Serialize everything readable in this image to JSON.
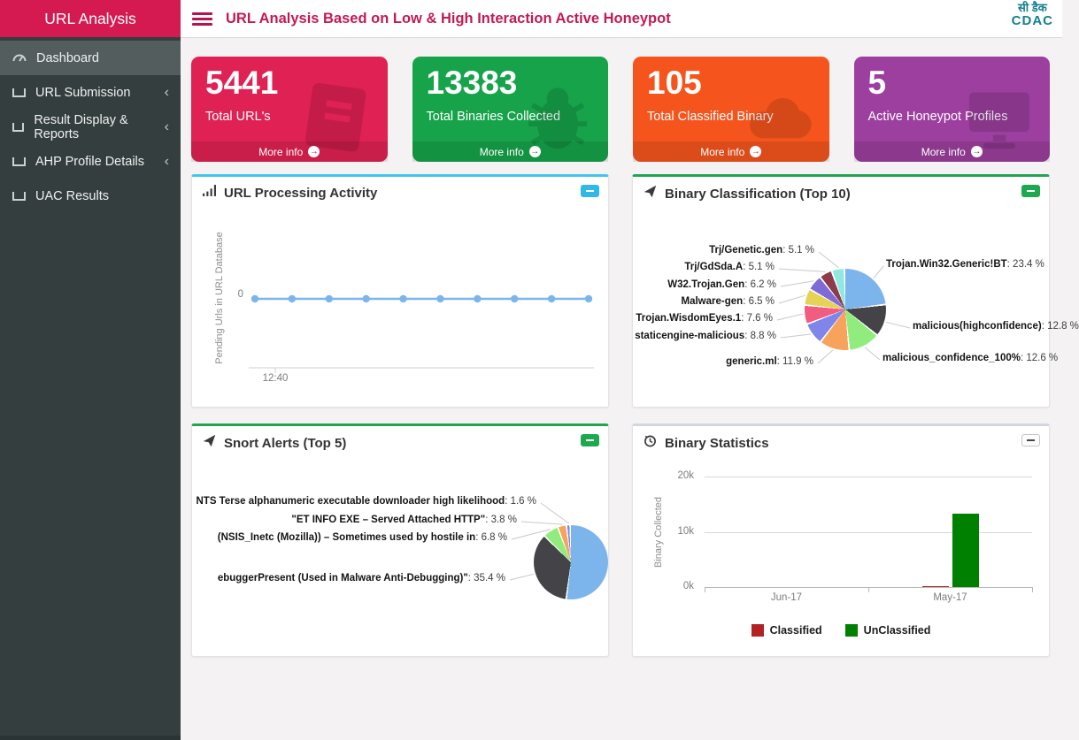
{
  "sidebar": {
    "title": "URL Analysis",
    "items": [
      {
        "label": "Dashboard",
        "icon": "dashboard-icon",
        "active": true
      },
      {
        "label": "URL Submission",
        "icon": "square-icon",
        "chevron": true
      },
      {
        "label": "Result Display & Reports",
        "icon": "square-icon",
        "chevron": true
      },
      {
        "label": "AHP Profile Details",
        "icon": "square-icon",
        "chevron": true
      },
      {
        "label": "UAC Results",
        "icon": "square-icon",
        "chevron": false
      }
    ]
  },
  "header": {
    "title": "URL Analysis Based on Low & High Interaction Active Honeypot",
    "logo": {
      "line1": "सी डैक",
      "line2": "CDAC",
      "color": "#15808f"
    }
  },
  "cards": [
    {
      "value": "5441",
      "label": "Total URL's",
      "more_info": "More info",
      "color": "#e02153",
      "icon": "book-icon"
    },
    {
      "value": "13383",
      "label": "Total Binaries Collected",
      "more_info": "More info",
      "color": "#16a34a",
      "icon": "bug-icon"
    },
    {
      "value": "105",
      "label": "Total Classified Binary",
      "more_info": "More info",
      "color": "#f5541d",
      "icon": "cloud-icon"
    },
    {
      "value": "5",
      "label": "Active Honeypot Profiles",
      "more_info": "More info",
      "color": "#9c3f9e",
      "icon": "monitor-icon"
    }
  ],
  "panels": [
    {
      "title": "URL Processing Activity",
      "accent": "#3ec6f0"
    },
    {
      "title": "Binary Classification (Top 10)",
      "accent": "#23a455"
    },
    {
      "title": "Snort Alerts (Top 5)",
      "accent": "#23a455"
    },
    {
      "title": "Binary Statistics",
      "accent": "#d2d6de"
    }
  ],
  "chart_data": [
    {
      "type": "line",
      "title": "URL Processing Activity",
      "ylabel": "Pending Urls in URL Database",
      "y_ticks": [
        "0"
      ],
      "x_ticks": [
        "12:40"
      ],
      "color": "#7cb5ec",
      "series": [
        {
          "name": "Pending Urls",
          "values": [
            0,
            0,
            0,
            0,
            0,
            0,
            0,
            0,
            0,
            0
          ]
        }
      ]
    },
    {
      "type": "pie",
      "title": "Binary Classification (Top 10)",
      "slices": [
        {
          "name": "Trojan.Win32.Generic!BT",
          "value": 23.4,
          "color": "#7cb5ec"
        },
        {
          "name": "malicious(highconfidence)",
          "value": 12.8,
          "color": "#434348"
        },
        {
          "name": "malicious_confidence_100%",
          "value": 12.6,
          "color": "#90ed7d"
        },
        {
          "name": "generic.ml",
          "value": 11.9,
          "color": "#f7a35c"
        },
        {
          "name": "staticengine-malicious",
          "value": 8.8,
          "color": "#8085e9"
        },
        {
          "name": "Trojan.WisdomEyes.1",
          "value": 7.6,
          "color": "#f15c80"
        },
        {
          "name": "Malware-gen",
          "value": 6.5,
          "color": "#e4d354"
        },
        {
          "name": "W32.Trojan.Gen",
          "value": 6.2,
          "color": "#7e6bd8"
        },
        {
          "name": "Trj/GdSda.A",
          "value": 5.1,
          "color": "#8d3a49"
        },
        {
          "name": "Trj/Genetic.gen",
          "value": 5.1,
          "color": "#91e8e1"
        }
      ]
    },
    {
      "type": "pie",
      "title": "Snort Alerts (Top 5)",
      "slices": [
        {
          "name": "",
          "value": 52.4,
          "color": "#7cb5ec"
        },
        {
          "name": "ebuggerPresent (Used in Malware Anti-Debugging)\"",
          "value": 35.4,
          "color": "#434348"
        },
        {
          "name": "(NSIS_Inetc (Mozilla)) – Sometimes used by hostile in",
          "value": 6.8,
          "color": "#90ed7d"
        },
        {
          "name": "\"ET INFO EXE – Served Attached HTTP\"",
          "value": 3.8,
          "color": "#f7a35c"
        },
        {
          "name": "NTS Terse alphanumeric executable downloader high likelihood",
          "value": 1.6,
          "color": "#8085e9"
        }
      ]
    },
    {
      "type": "bar",
      "title": "Binary Statistics",
      "categories": [
        "Jun-17",
        "May-17"
      ],
      "ylabel": "Binary Collected",
      "y_ticks": [
        "0k",
        "10k",
        "20k"
      ],
      "ylim": [
        0,
        20000
      ],
      "series": [
        {
          "name": "Classified",
          "color": "#b22222",
          "values": [
            0,
            105
          ]
        },
        {
          "name": "UnClassified",
          "color": "#008000",
          "values": [
            0,
            13300
          ]
        }
      ]
    }
  ]
}
